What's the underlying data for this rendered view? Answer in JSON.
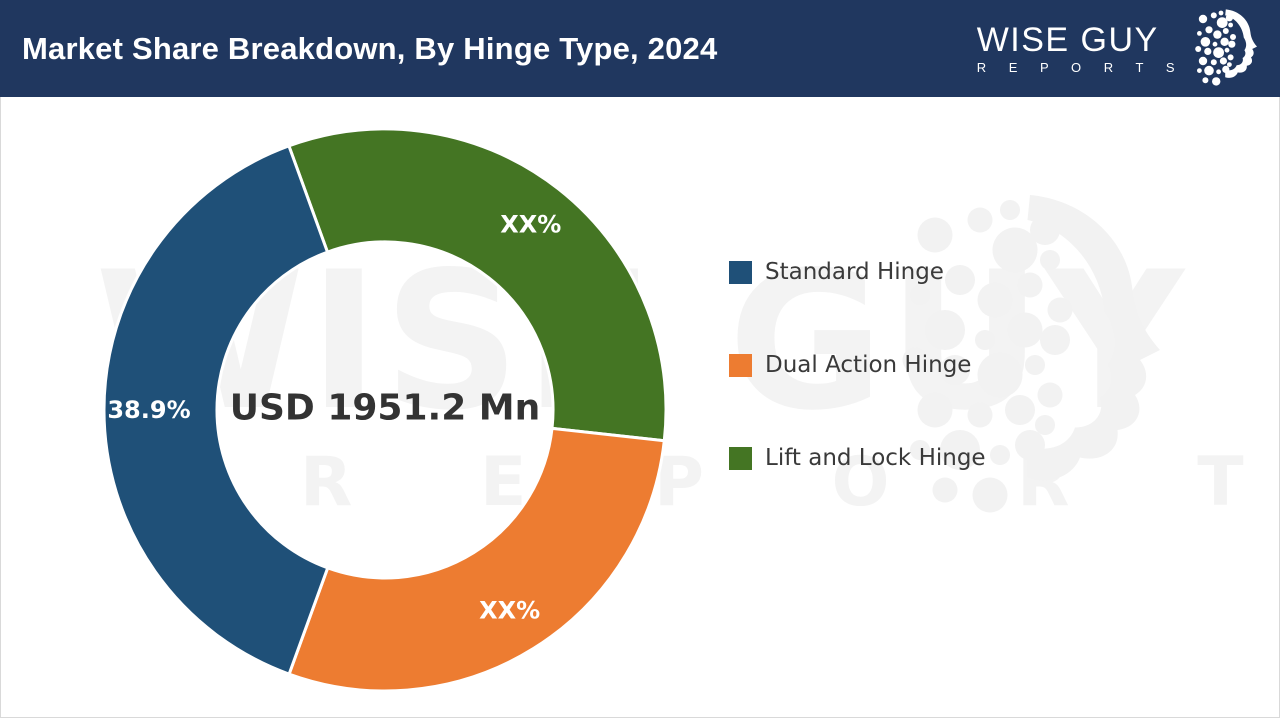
{
  "header": {
    "title": "Market Share Breakdown, By Hinge Type, 2024",
    "logo": {
      "line1": "WISE GUY",
      "line2": "R E P O R T S"
    }
  },
  "watermark": {
    "line1": "WISE GUY",
    "line2": "R E P O R T S"
  },
  "chart_data": {
    "type": "pie",
    "subtype": "donut",
    "title": "Market Share Breakdown, By Hinge Type, 2024",
    "center_label": "USD 1951.2 Mn",
    "start_angle_deg": -20,
    "direction": "clockwise",
    "draw_order": [
      2,
      1,
      0
    ],
    "legend_position": "right",
    "segments": [
      {
        "label": "Standard Hinge",
        "color": "#1f5078",
        "pct": 38.9,
        "display": "38.9%"
      },
      {
        "label": "Dual Action Hinge",
        "color": "#ed7c31",
        "pct": 28.8,
        "display": "XX%"
      },
      {
        "label": "Lift and Lock Hinge",
        "color": "#447523",
        "pct": 32.3,
        "display": "XX%"
      }
    ]
  },
  "colors": {
    "header_bg": "#20375f",
    "segment_gap": "#ffffff",
    "center_text": "#333333",
    "legend_text": "#3a3a3a",
    "watermark": "#f3f3f3",
    "frame_border": "#d9d9d9"
  }
}
